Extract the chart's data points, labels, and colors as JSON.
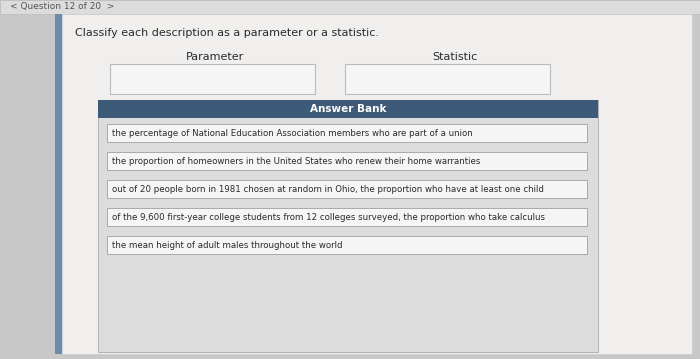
{
  "title_bar": "< Question 12 of 20  >",
  "instruction": "Classify each description as a parameter or a statistic.",
  "col1_label": "Parameter",
  "col2_label": "Statistic",
  "answer_bank_label": "Answer Bank",
  "answer_items": [
    "the percentage of National Education Association members who are part of a union",
    "the proportion of homeowners in the United States who renew their home warranties",
    "out of 20 people born in 1981 chosen at random in Ohio, the proportion who have at least one child",
    "of the 9,600 first-year college students from 12 colleges surveyed, the proportion who take calculus",
    "the mean height of adult males throughout the world"
  ],
  "outer_bg": "#c8c8c8",
  "title_bg": "#dcdcdc",
  "panel_bg": "#f0efee",
  "answer_bank_header_color": "#3d5a78",
  "answer_bank_header_text": "#ffffff",
  "answer_bank_bg": "#dcdcdc",
  "box_border_color": "#bbbbbb",
  "text_color": "#2a2a2a",
  "drop_box_color": "#f5f5f5",
  "answer_item_bg": "#f5f5f5",
  "answer_item_border": "#aaaaaa",
  "left_accent_color": "#6b8cae",
  "title_text_color": "#555555"
}
